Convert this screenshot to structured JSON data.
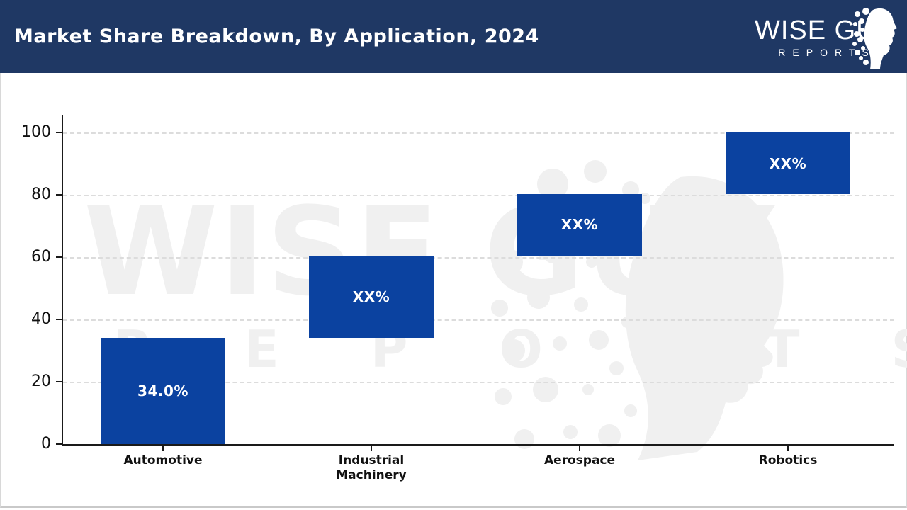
{
  "header": {
    "title": "Market Share Breakdown, By Application, 2024",
    "logo": {
      "line1": "WISE GUY",
      "line2": "REPORTS"
    }
  },
  "watermark": {
    "line1": "WISE GUY",
    "line2": "R E P O R T S"
  },
  "colors": {
    "header_bg": "#1f3864",
    "bar": "#0b42a0",
    "bar_label": "#ffffff",
    "grid": "#dcdcdc",
    "axis": "#1a1a1a",
    "watermark": "#f0f0f0",
    "title_text": "#ffffff"
  },
  "chart_data": {
    "type": "bar",
    "subtype": "waterfall-stacked-breakdown",
    "title": "Market Share Breakdown, By Application, 2024",
    "categories": [
      "Automotive",
      "Industrial Machinery",
      "Aerospace",
      "Robotics"
    ],
    "bars": [
      {
        "category": "Automotive",
        "start": 0,
        "end": 34,
        "value": 34.0,
        "label": "34.0%"
      },
      {
        "category": "Industrial Machinery",
        "start": 34,
        "end": 60.5,
        "value": 26.5,
        "label": "XX%"
      },
      {
        "category": "Aerospace",
        "start": 60.5,
        "end": 80.2,
        "value": 19.7,
        "label": "XX%"
      },
      {
        "category": "Robotics",
        "start": 80.2,
        "end": 100,
        "value": 19.8,
        "label": "XX%"
      }
    ],
    "y_ticks": [
      0,
      20,
      40,
      60,
      80,
      100
    ],
    "ylim": [
      0,
      105.5
    ],
    "xlabel": "",
    "ylabel": "",
    "grid": "dashed-horizontal",
    "legend": "none"
  }
}
